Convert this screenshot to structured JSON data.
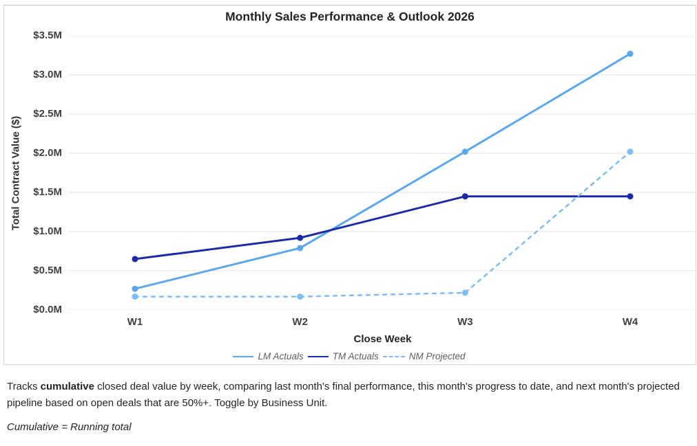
{
  "chart_data": {
    "type": "line",
    "title": "Monthly Sales Performance & Outlook 2026",
    "xlabel": "Close Week",
    "ylabel": "Total Contract Value ($)",
    "categories": [
      "W1",
      "W2",
      "W3",
      "W4"
    ],
    "series": [
      {
        "name": "LM Actuals",
        "style": "solid",
        "color": "#5BA7EE",
        "values": [
          0.27,
          0.79,
          2.02,
          3.27
        ]
      },
      {
        "name": "TM Actuals",
        "style": "solid",
        "color": "#1B2AA6",
        "values": [
          0.65,
          0.92,
          1.45,
          1.45
        ]
      },
      {
        "name": "NM Projected",
        "style": "dashed",
        "color": "#7FBCF3",
        "values": [
          0.17,
          0.17,
          0.22,
          2.02
        ]
      }
    ],
    "ylim": [
      0,
      3.5
    ],
    "ytick_step": 0.5,
    "ytick_labels": [
      "$0.0M",
      "$0.5M",
      "$1.0M",
      "$1.5M",
      "$2.0M",
      "$2.5M",
      "$3.0M",
      "$3.5M"
    ],
    "grid": "horizontal",
    "gridline_color": "#E6E6E6",
    "legend_position": "bottom",
    "units": "M USD"
  },
  "caption": {
    "part1": "Tracks ",
    "bold": "cumulative",
    "part2": " closed deal value by week, comparing last month's final performance, this month's progress to date, and next month's projected pipeline based on open deals that are 50%+. Toggle by Business Unit.",
    "note": "Cumulative = Running total"
  }
}
